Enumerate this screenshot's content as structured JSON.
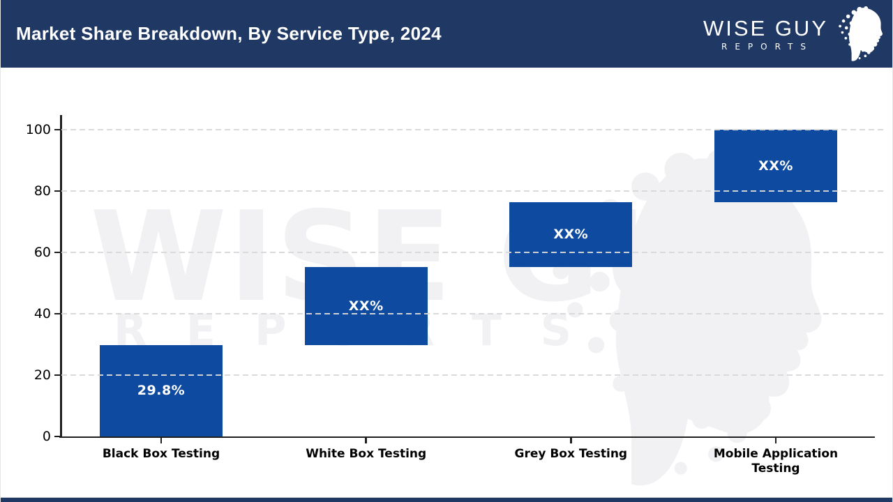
{
  "header": {
    "title": "Market Share Breakdown, By Service Type, 2024",
    "logo": {
      "line1": "WISE GUY",
      "line2": "REPORTS"
    }
  },
  "watermark": {
    "line1": "WISE GUY",
    "line2": "REPORTS"
  },
  "colors": {
    "header_bg": "#203864",
    "bar": "#0d4aa0",
    "gridline": "#d8d8d8",
    "watermark": "#f1f1f4",
    "axis": "#1f1f1f",
    "bar_label": "#ffffff"
  },
  "chart_data": {
    "type": "bar",
    "subtype": "waterfall",
    "title": "Market Share Breakdown, By Service Type, 2024",
    "categories": [
      "Black Box Testing",
      "White Box Testing",
      "Grey Box Testing",
      "Mobile Application Testing"
    ],
    "segments": [
      {
        "category": "Black Box Testing",
        "start": 0,
        "end": 29.8,
        "label": "29.8%"
      },
      {
        "category": "White Box Testing",
        "start": 29.8,
        "end": 55.2,
        "label": "XX%"
      },
      {
        "category": "Grey Box Testing",
        "start": 55.2,
        "end": 76.4,
        "label": "XX%"
      },
      {
        "category": "Mobile Application Testing",
        "start": 76.4,
        "end": 100,
        "label": "XX%"
      }
    ],
    "xlabel": "",
    "ylabel": "",
    "ylim": [
      0,
      100
    ],
    "yticks": [
      0,
      20,
      40,
      60,
      80,
      100
    ],
    "grid": "horizontal dashed, drawn over bars",
    "legend": "none"
  }
}
